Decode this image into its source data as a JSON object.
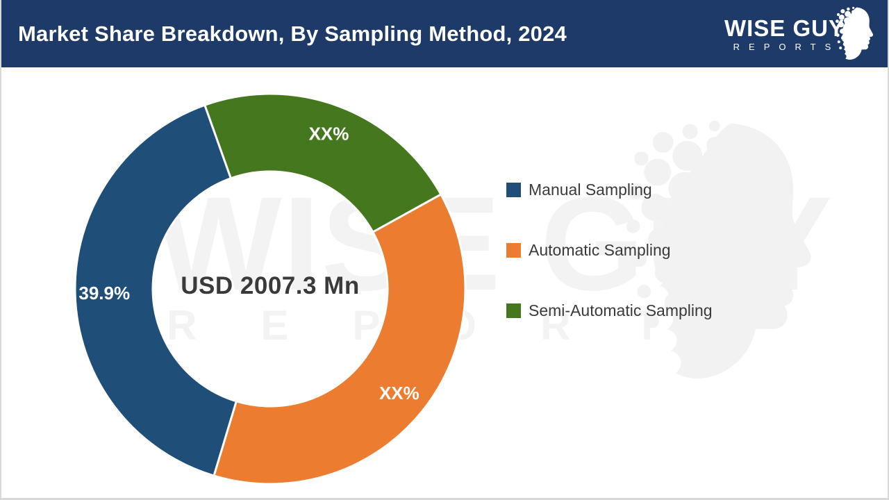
{
  "header": {
    "title": "Market Share Breakdown, By Sampling Method, 2024",
    "logo": {
      "line1": "WISE GUY",
      "line2": "REPORTS"
    }
  },
  "watermark": {
    "line1": "WISE GUY",
    "line2": "REPORTS"
  },
  "chart_data": {
    "type": "pie",
    "style": "donut",
    "title": "Market Share Breakdown, By Sampling Method, 2024",
    "center_label": "USD 2007.3 Mn",
    "unit": "percent of market share",
    "series": [
      {
        "name": "Manual Sampling",
        "label": "39.9%",
        "value": 39.9,
        "color": "#1f4e79"
      },
      {
        "name": "Automatic Sampling",
        "label": "XX%",
        "value": 37.7,
        "color": "#ec7c30"
      },
      {
        "name": "Semi-Automatic Sampling",
        "label": "XX%",
        "value": 22.4,
        "color": "#45771e"
      }
    ],
    "labels_note": "Automatic and Semi-Automatic share labels are shown redacted as XX% in the image; their numeric values are estimated from the arc angles.",
    "legend_position": "right",
    "draw": {
      "start_angle_deg": -19.6,
      "order": [
        2,
        1,
        0
      ],
      "outer_radius": 281,
      "inner_radius": 169,
      "label_radius_frac": 0.85
    }
  },
  "colors": {
    "header_bg": "#1e3a68",
    "center_text": "#3a3a3a",
    "legend_text": "#3a3a3a",
    "watermark": "#f3f3f4",
    "slice_border": "#ffffff"
  }
}
